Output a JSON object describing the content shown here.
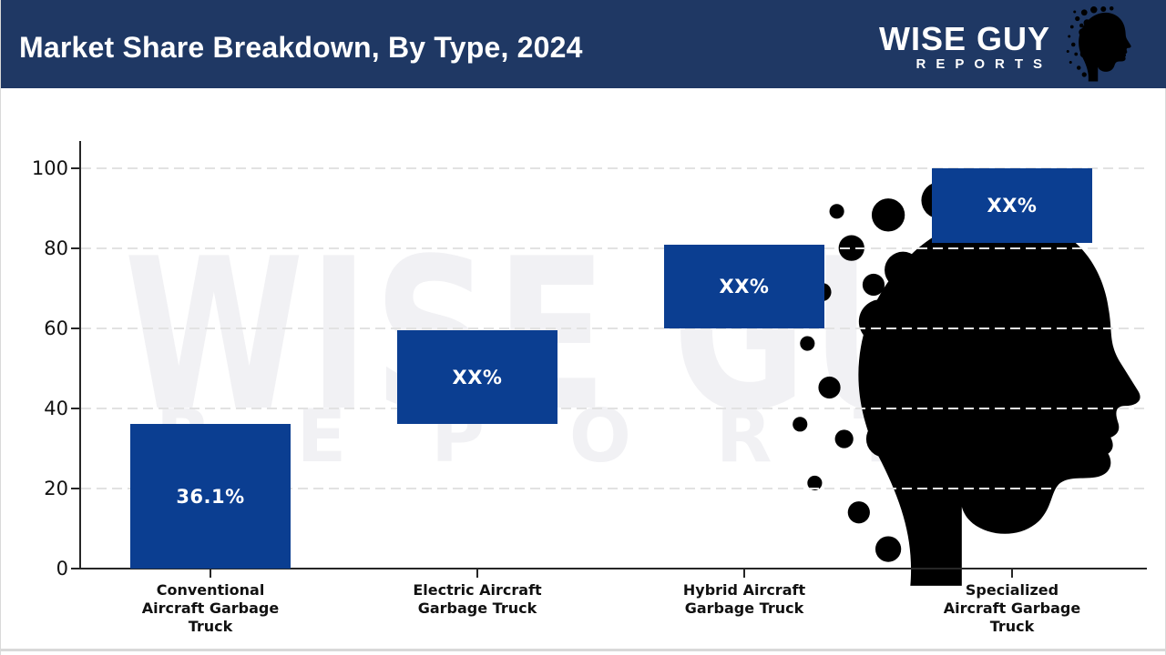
{
  "header": {
    "title": "Market Share Breakdown, By Type, 2024",
    "logo": {
      "wordmark": "WISE GUY",
      "reports": "REPORTS"
    }
  },
  "watermark": {
    "wordmark": "WISE GUY",
    "reports": "REPORTS"
  },
  "colors": {
    "header_bg": "#1f3864",
    "bar": "#0b3e91",
    "bar_label": "#ffffff",
    "axis": "#262626",
    "grid": "#e2e2e2",
    "watermark": "#f1f1f4"
  },
  "chart_data": {
    "type": "bar",
    "variant": "floating-waterfall",
    "title": "Market Share Breakdown, By Type, 2024",
    "xlabel": "",
    "ylabel": "",
    "legend": "none",
    "grid": "horizontal-dashed",
    "ylim": [
      0,
      106.8
    ],
    "yticks": [
      0,
      20,
      40,
      60,
      80,
      100
    ],
    "categories": [
      "Conventional Aircraft Garbage Truck",
      "Electric Aircraft Garbage Truck",
      "Hybrid Aircraft Garbage Truck",
      "Specialized Aircraft Garbage Truck"
    ],
    "category_lines": [
      [
        "Conventional",
        "Aircraft Garbage",
        "Truck"
      ],
      [
        "Electric Aircraft",
        "Garbage Truck"
      ],
      [
        "Hybrid Aircraft",
        "Garbage Truck"
      ],
      [
        "Specialized",
        "Aircraft Garbage",
        "Truck"
      ]
    ],
    "bars": [
      {
        "start": 0,
        "end": 36.1,
        "label": "36.1%"
      },
      {
        "start": 36.1,
        "end": 59.5,
        "label": "XX%"
      },
      {
        "start": 60.0,
        "end": 80.9,
        "label": "XX%"
      },
      {
        "start": 81.4,
        "end": 100,
        "label": "XX%"
      }
    ],
    "bar_color": "#0b3e91",
    "bar_label_color": "#ffffff"
  }
}
